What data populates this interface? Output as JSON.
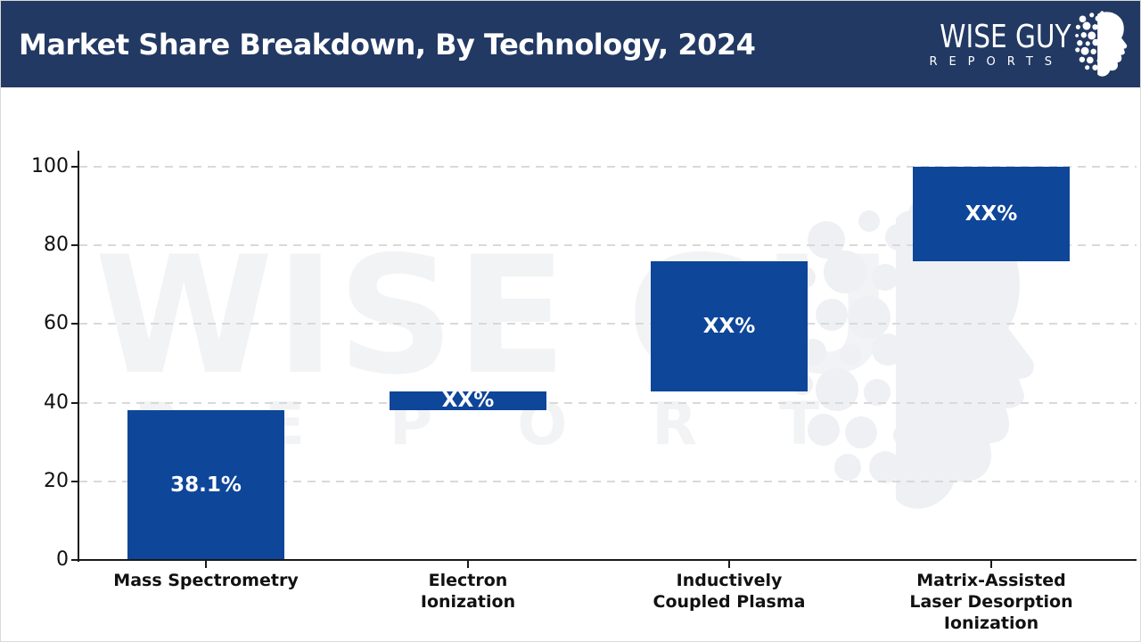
{
  "header": {
    "title": "Market Share Breakdown, By Technology, 2024",
    "logo": {
      "name_top": "WISE GUY",
      "name_bottom": "REPORTS"
    }
  },
  "watermark": {
    "text_top": "WISE GU",
    "text_bottom": "REPORTS"
  },
  "chart_data": {
    "type": "bar",
    "subtype": "floating-waterfall",
    "title": "Market Share Breakdown, By Technology, 2024",
    "categories": [
      "Mass Spectrometry",
      "Electron Ionization",
      "Inductively Coupled Plasma",
      "Matrix-Assisted Laser Desorption Ionization"
    ],
    "bars": [
      {
        "category": "Mass Spectrometry",
        "tick_label": "Mass Spectrometry",
        "value_label": "38.1%",
        "start": 0,
        "end": 38.1
      },
      {
        "category": "Electron Ionization",
        "tick_label": "Electron\nIonization",
        "value_label": "XX%",
        "start": 38.1,
        "end": 42.9
      },
      {
        "category": "Inductively Coupled Plasma",
        "tick_label": "Inductively\nCoupled Plasma",
        "value_label": "XX%",
        "start": 42.9,
        "end": 76
      },
      {
        "category": "Matrix-Assisted Laser Desorption Ionization",
        "tick_label": "Matrix-Assisted\nLaser Desorption\nIonization",
        "value_label": "XX%",
        "start": 76,
        "end": 100
      }
    ],
    "yticks": [
      0,
      20,
      40,
      60,
      80,
      100
    ],
    "ylim": [
      0,
      105
    ],
    "xlabel": "",
    "ylabel": "",
    "grid": "horizontal-dashed",
    "legend": "none"
  },
  "colors": {
    "header_bg": "#223963",
    "bar": "#0e4699",
    "grid": "#d9d9d9",
    "axis": "#1a1a1a",
    "watermark": "#f2f3f5",
    "value_label": "#ffffff"
  }
}
